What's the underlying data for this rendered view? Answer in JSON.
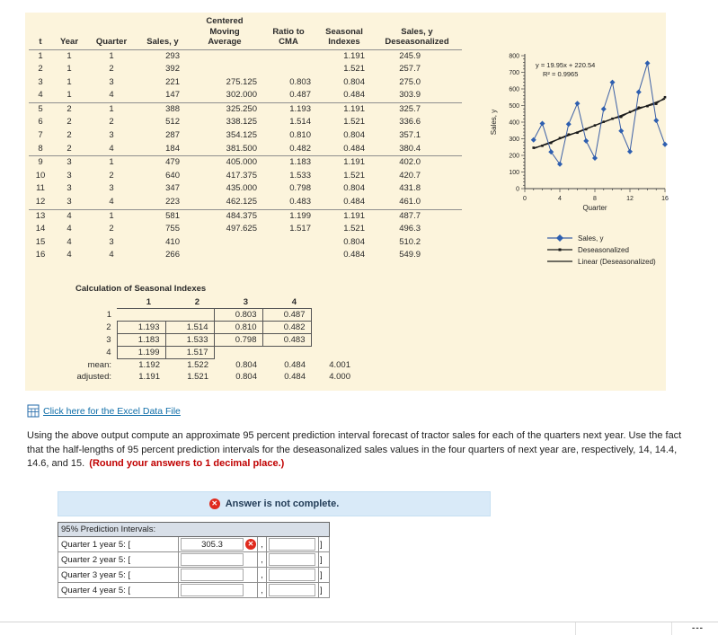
{
  "colors": {
    "panel_bg": "#fcf4dc",
    "link_blue": "#0e6da8",
    "note_red": "#c00000",
    "banner_bg": "#d9eaf8",
    "error_red": "#e02a1d",
    "sales_series": "#3b5fa5",
    "deseasonalized_series": "#1a1a1a"
  },
  "panel": {
    "main_table": {
      "headers": [
        [
          "t"
        ],
        [
          "Year"
        ],
        [
          "Quarter"
        ],
        [
          "Sales, y"
        ],
        [
          "Centered",
          "Moving",
          "Average"
        ],
        [
          "Ratio to",
          "CMA"
        ],
        [
          "Seasonal",
          "Indexes"
        ],
        [
          "Sales, y",
          "Deseasonalized"
        ]
      ],
      "group_size": 4,
      "rows": [
        [
          "1",
          "1",
          "1",
          "293",
          "",
          "",
          "1.191",
          "245.9"
        ],
        [
          "2",
          "1",
          "2",
          "392",
          "",
          "",
          "1.521",
          "257.7"
        ],
        [
          "3",
          "1",
          "3",
          "221",
          "275.125",
          "0.803",
          "0.804",
          "275.0"
        ],
        [
          "4",
          "1",
          "4",
          "147",
          "302.000",
          "0.487",
          "0.484",
          "303.9"
        ],
        [
          "5",
          "2",
          "1",
          "388",
          "325.250",
          "1.193",
          "1.191",
          "325.7"
        ],
        [
          "6",
          "2",
          "2",
          "512",
          "338.125",
          "1.514",
          "1.521",
          "336.6"
        ],
        [
          "7",
          "2",
          "3",
          "287",
          "354.125",
          "0.810",
          "0.804",
          "357.1"
        ],
        [
          "8",
          "2",
          "4",
          "184",
          "381.500",
          "0.482",
          "0.484",
          "380.4"
        ],
        [
          "9",
          "3",
          "1",
          "479",
          "405.000",
          "1.183",
          "1.191",
          "402.0"
        ],
        [
          "10",
          "3",
          "2",
          "640",
          "417.375",
          "1.533",
          "1.521",
          "420.7"
        ],
        [
          "11",
          "3",
          "3",
          "347",
          "435.000",
          "0.798",
          "0.804",
          "431.8"
        ],
        [
          "12",
          "3",
          "4",
          "223",
          "462.125",
          "0.483",
          "0.484",
          "461.0"
        ],
        [
          "13",
          "4",
          "1",
          "581",
          "484.375",
          "1.199",
          "1.191",
          "487.7"
        ],
        [
          "14",
          "4",
          "2",
          "755",
          "497.625",
          "1.517",
          "1.521",
          "496.3"
        ],
        [
          "15",
          "4",
          "3",
          "410",
          "",
          "",
          "0.804",
          "510.2"
        ],
        [
          "16",
          "4",
          "4",
          "266",
          "",
          "",
          "0.484",
          "549.9"
        ]
      ]
    },
    "seasonal_table": {
      "title": "Calculation of Seasonal Indexes",
      "col_headers": [
        "1",
        "2",
        "3",
        "4"
      ],
      "rows": [
        {
          "label": "1",
          "cells": [
            "",
            "",
            "0.803",
            "0.487"
          ]
        },
        {
          "label": "2",
          "cells": [
            "1.193",
            "1.514",
            "0.810",
            "0.482"
          ]
        },
        {
          "label": "3",
          "cells": [
            "1.183",
            "1.533",
            "0.798",
            "0.483"
          ]
        },
        {
          "label": "4",
          "cells": [
            "1.199",
            "1.517",
            "",
            ""
          ]
        }
      ],
      "summary_rows": [
        {
          "label": "mean:",
          "cells": [
            "1.192",
            "1.522",
            "0.804",
            "0.484"
          ],
          "total": "4.001"
        },
        {
          "label": "adjusted:",
          "cells": [
            "1.191",
            "1.521",
            "0.804",
            "0.484"
          ],
          "total": "4.000"
        }
      ]
    }
  },
  "chart_data": {
    "type": "line",
    "x": [
      1,
      2,
      3,
      4,
      5,
      6,
      7,
      8,
      9,
      10,
      11,
      12,
      13,
      14,
      15,
      16
    ],
    "series": [
      {
        "name": "Sales, y",
        "marker": "diamond",
        "color": "#3b5fa5",
        "values": [
          293,
          392,
          221,
          147,
          388,
          512,
          287,
          184,
          479,
          640,
          347,
          223,
          581,
          755,
          410,
          266
        ]
      },
      {
        "name": "Deseasonalized",
        "marker": "square",
        "color": "#1a1a1a",
        "values": [
          245.9,
          257.7,
          275.0,
          303.9,
          325.7,
          336.6,
          357.1,
          380.4,
          402.0,
          420.7,
          431.8,
          461.0,
          487.7,
          496.3,
          510.2,
          549.9
        ]
      },
      {
        "name": "Linear (Deseasonalized)",
        "marker": "none",
        "color": "#1a1a1a",
        "trendline": {
          "slope": 19.95,
          "intercept": 220.54
        }
      }
    ],
    "annotation": {
      "equation": "y = 19.95x + 220.54",
      "r_squared": "R² = 0.9965"
    },
    "xlabel": "Quarter",
    "ylabel": "Sales, y",
    "xlim": [
      0,
      16
    ],
    "ylim": [
      0,
      800
    ],
    "xticks": [
      0,
      4,
      8,
      12,
      16
    ],
    "yticks": [
      0,
      100,
      200,
      300,
      400,
      500,
      600,
      700,
      800
    ],
    "legend": [
      "Sales, y",
      "Deseasonalized",
      "Linear (Deseasonalized)"
    ]
  },
  "excel_link": {
    "label": "Click here for the Excel Data File"
  },
  "question": {
    "text": "Using the above output compute an approximate 95 percent prediction interval forecast of tractor sales for each of the quarters next year. Use the fact that the half-lengths of 95 percent prediction intervals for the deseasonalized sales values in the four quarters of next year are, respectively, 14, 14.4, 14.6, and 15.",
    "note": "(Round your answers to 1 decimal place.)"
  },
  "status": {
    "icon": "✕",
    "message": "Answer is not complete."
  },
  "prediction": {
    "title": "95% Prediction Intervals:",
    "rows": [
      {
        "label": "Quarter 1 year 5: [",
        "lower": "305.3",
        "lower_error": true,
        "separator": ",",
        "upper": "",
        "close": "]"
      },
      {
        "label": "Quarter 2 year 5: [",
        "lower": "",
        "lower_error": false,
        "separator": ",",
        "upper": "",
        "close": "]"
      },
      {
        "label": "Quarter 3 year 5: [",
        "lower": "",
        "lower_error": false,
        "separator": ",",
        "upper": "",
        "close": "]"
      },
      {
        "label": "Quarter 4 year 5: [",
        "lower": "",
        "lower_error": false,
        "separator": ",",
        "upper": "",
        "close": "]"
      }
    ]
  },
  "footer": {
    "more": "---"
  }
}
